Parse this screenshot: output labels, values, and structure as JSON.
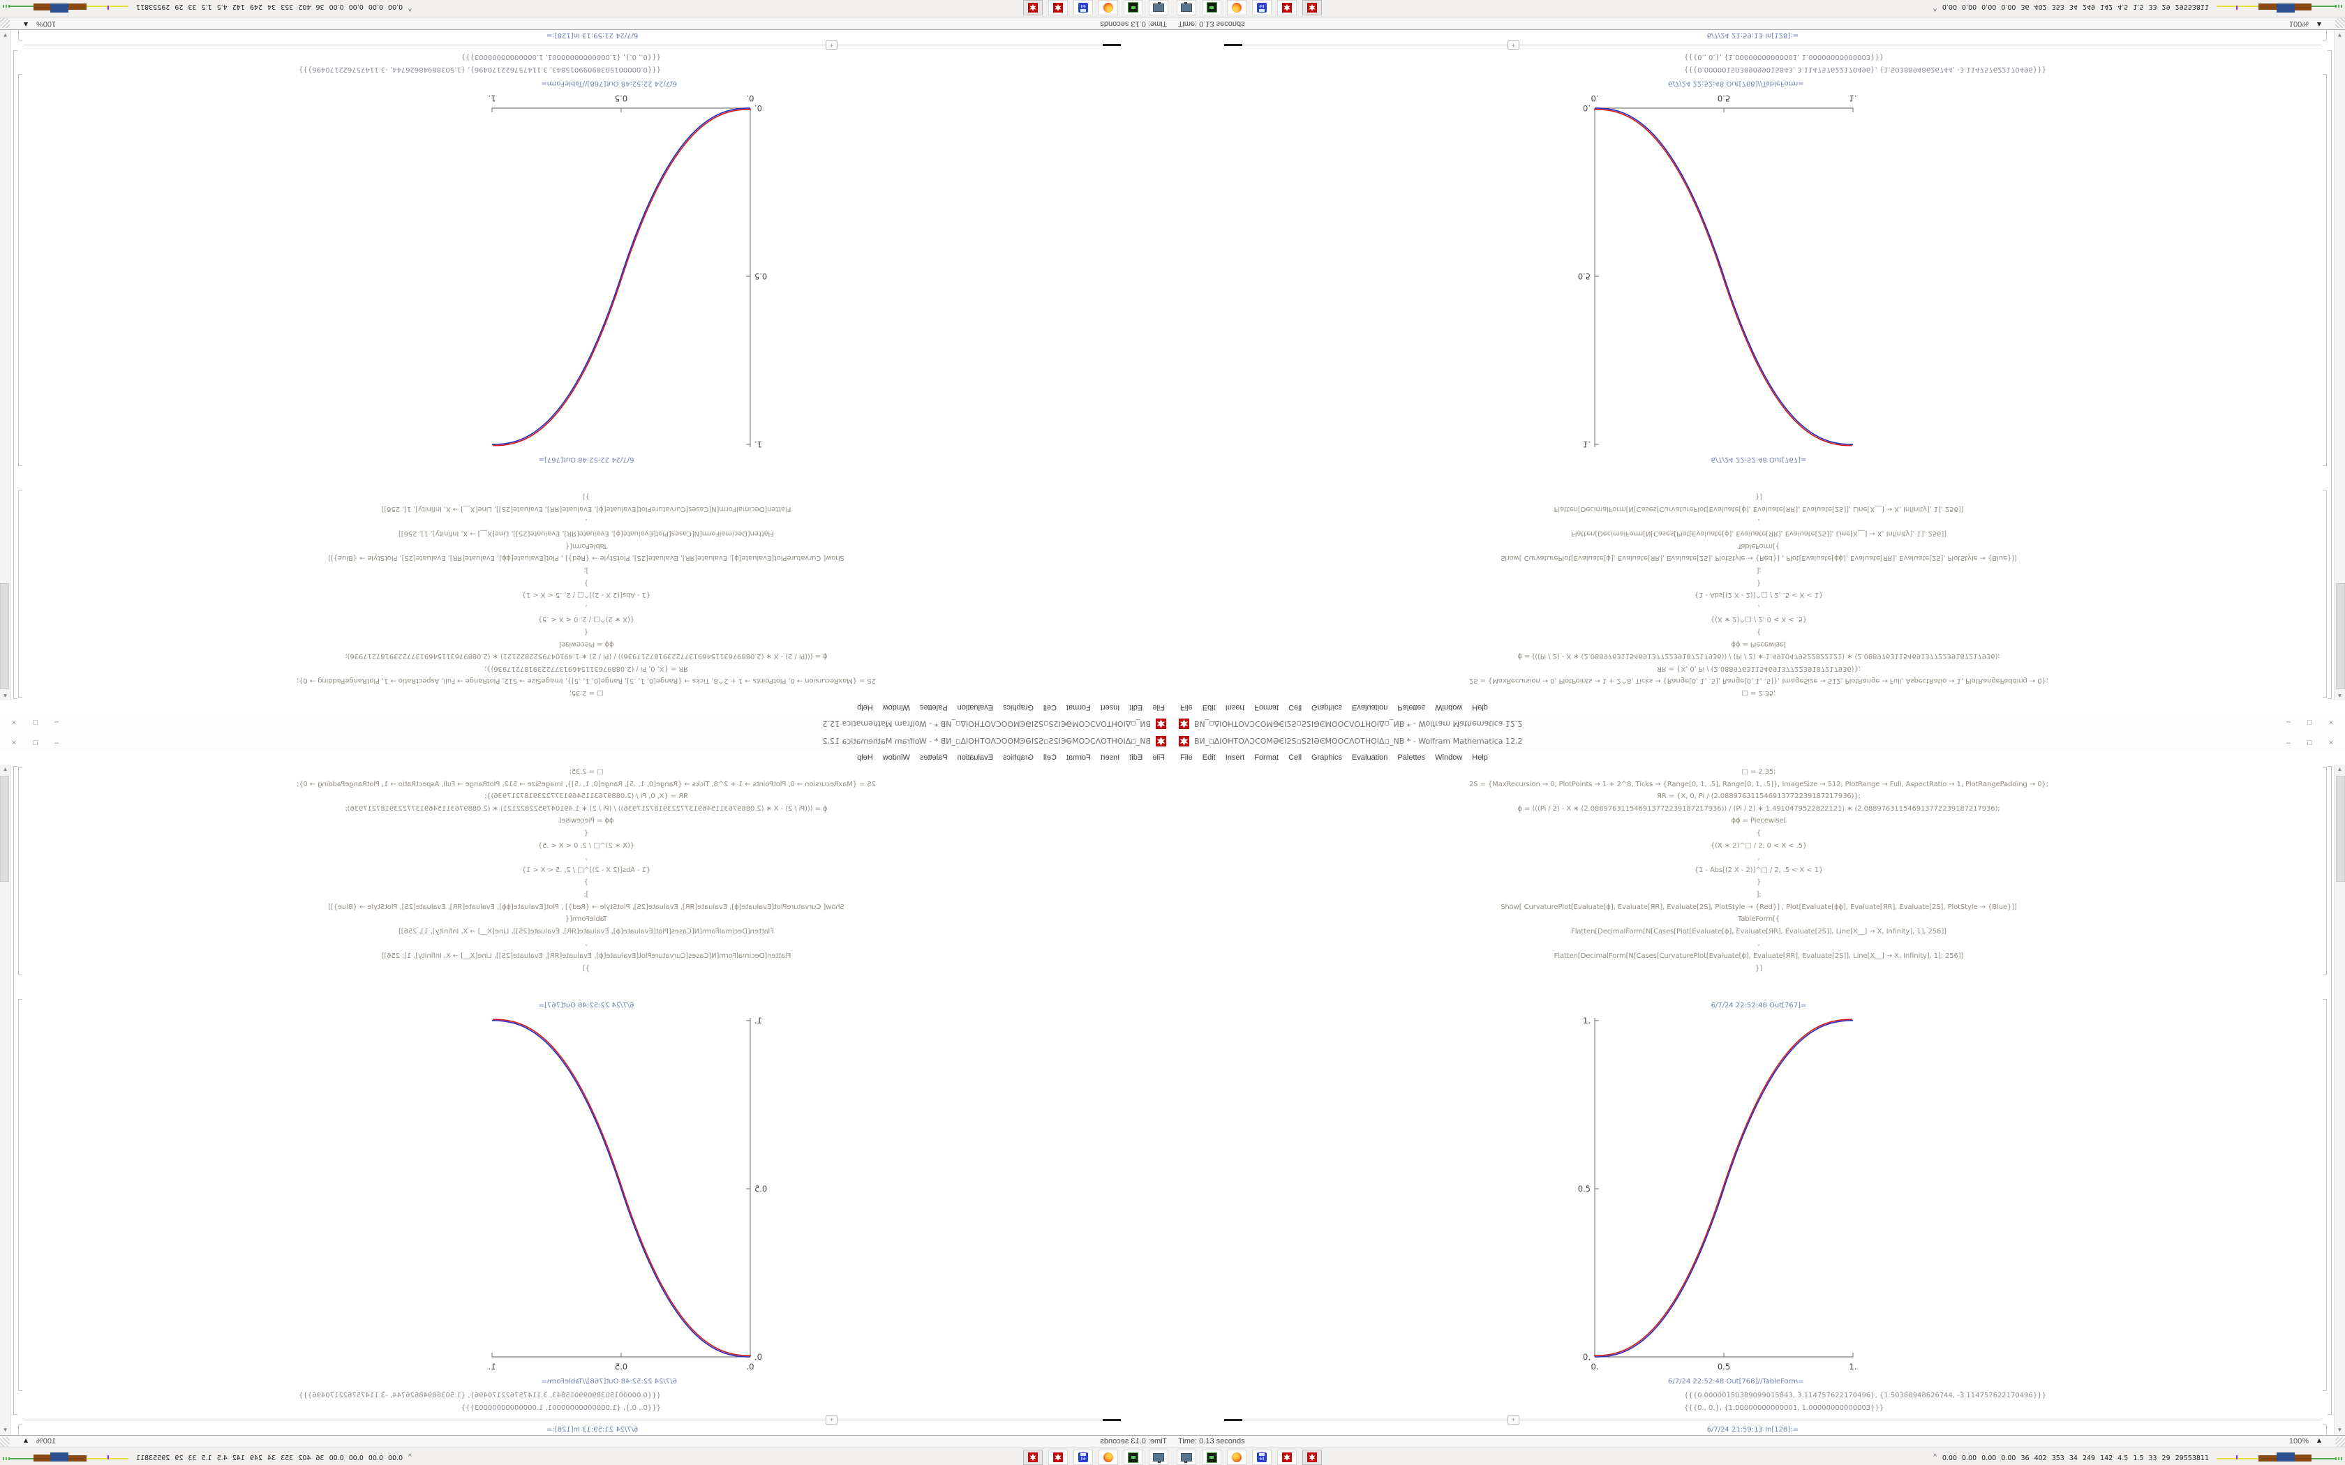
{
  "window": {
    "title": "ВИ_▫ΔIOHTOΛƆCOMƏЄI2S▫S2IƏЄMOOCΛOTHOIΔ▫_NB * - Wolfram Mathematica 12.2",
    "menu": [
      "File",
      "Edit",
      "Insert",
      "Format",
      "Cell",
      "Graphics",
      "Evaluation",
      "Palettes",
      "Window",
      "Help"
    ],
    "controls": {
      "minimize": "–",
      "maximize": "□",
      "close": "×"
    },
    "cells": {
      "code_lines": [
        "□ = 2.35;",
        "2S = {MaxRecursion → 0, PlotPoints → 1 + 2^8, Ticks → {Range[0, 1, .5], Range[0, 1, .5]}, ImageSize → 512, PlotRange → Full, AspectRatio → 1, PlotRangePadding → 0};",
        "ЯR = {X, 0, Pi / (2.088976311546913772239187217936)};",
        "ɸ = (((Pi / 2) - X ∗ (2.088976311546913772239187217936)) / (Pi / 2) ∗ 1.4910479522822121) ∗ (2.088976311546913772239187217936);",
        "ɸɸ = Piecewise[",
        "{",
        "{(X ∗ 2)^□ / 2, 0 < X < .5}",
        ",",
        "{1 - Abs[(2 X - 2)]^□ / 2, .5 < X < 1}",
        "}",
        "];",
        "Show[  CurvaturePlot[Evaluate[ɸ], Evaluate[ЯR], Evaluate[2S], PlotStyle → {Red}]  ,  Plot[Evaluate[ɸɸ], Evaluate[ЯR], Evaluate[2S], PlotStyle → {Blue}]]",
        "TableForm[{",
        "Flatten[DecimalForm[N[Cases[Plot[Evaluate[ɸ], Evaluate[ЯR], Evaluate[2S]], Line[X__] → X, Infinity], 1], 256]]",
        ",",
        "Flatten[DecimalForm[N[Cases[CurvaturePlot[Evaluate[ɸ], Evaluate[ЯR], Evaluate[2S]], Line[X__] → X, Infinity], 1], 256]]",
        "}]"
      ],
      "out1_label": "6/7/24 22:52:48 Out[767]=",
      "out2_label": "6/7/24 22:52:48 Out[768]//TableForm=",
      "table_rows": [
        "{{{0.00000150389099015843, 3.114757622170496}, {1.50388948626744, -3.114757622170496}}}",
        "{{{0., 0.}, {1.00000000000001, 1.00000000000003}}}"
      ],
      "in_label": "6/7/24 21:59:13 In[128]:=",
      "insert_plus": "+"
    },
    "status": {
      "left": "Time: 0.13 seconds",
      "zoom": "100%",
      "zoom_caret": "▲"
    }
  },
  "taskbar": {
    "apps": [
      {
        "name": "system-monitor-app",
        "icon": "monitor",
        "active": false
      },
      {
        "name": "hardware-utility-app",
        "icon": "green",
        "active": false
      },
      {
        "name": "firefox-browser",
        "icon": "ff",
        "active": false
      },
      {
        "name": "disk-64-app",
        "icon": "floppy",
        "label": "64",
        "active": false
      },
      {
        "name": "mathematica-instance-1",
        "icon": "spikey",
        "active": false
      },
      {
        "name": "mathematica-instance-2",
        "icon": "spikey",
        "active": true
      }
    ],
    "tray": {
      "expand": "^",
      "values": [
        "0.00",
        "0.00",
        "0.00",
        "0.00",
        "36",
        "402",
        "353",
        "34",
        "249",
        "142",
        "4.5",
        "1.5",
        "33",
        "29",
        "29553811"
      ],
      "sparklines": [
        {
          "kind": "line",
          "color": "#e3e23f",
          "w": 28
        },
        {
          "kind": "tick",
          "color": "#8b2fc9",
          "w": 2
        },
        {
          "kind": "line",
          "color": "#e3e23f",
          "w": 30
        },
        {
          "kind": "block",
          "color": "#8a4a16",
          "w": 26,
          "h": 9
        },
        {
          "kind": "block",
          "color": "#2e4f8f",
          "w": 26,
          "h": 13
        },
        {
          "kind": "block",
          "color": "#8a4a16",
          "w": 24,
          "h": 10
        },
        {
          "kind": "line",
          "color": "#4bb54b",
          "w": 34
        },
        {
          "kind": "ticks",
          "color": "#4bb54b",
          "w": 12
        }
      ]
    }
  },
  "layout_note": "Screenshot is a 2x2 kaleidoscope: bottom-right quadrant is the original 1680x1050 screen; bottom-left is its horizontal mirror, top-right its vertical mirror, top-left its 180-degree rotation.",
  "chart_data": {
    "type": "line",
    "title": "Out[767]= Show[CurvaturePlot (Red), Plot (Blue)]",
    "xlabel": "",
    "ylabel": "",
    "xlim": [
      0,
      1
    ],
    "ylim": [
      0,
      1
    ],
    "grid": false,
    "legend": false,
    "x_ticks": [
      0,
      0.5,
      1
    ],
    "y_ticks": [
      0,
      0.5,
      1
    ],
    "x_tick_labels": [
      "0.",
      "0.5",
      "1."
    ],
    "y_tick_labels": [
      "0.",
      "0.5",
      "1."
    ],
    "exponent": 2.35,
    "piecewise": "y = (2x)^2.35 / 2 for 0 < x < 0.5 ; y = 1 - |2x - 2|^2.35 / 2 for 0.5 < x < 1",
    "series": [
      {
        "name": "CurvaturePlot[ɸ]",
        "color": "#cf1f1f",
        "x": [
          0,
          0.1,
          0.2,
          0.3,
          0.4,
          0.5,
          0.6,
          0.7,
          0.8,
          0.9,
          1.0
        ],
        "y": [
          0,
          0.0114,
          0.0581,
          0.1506,
          0.296,
          0.5,
          0.704,
          0.8494,
          0.9419,
          0.9886,
          1.0
        ]
      },
      {
        "name": "Plot[ɸɸ]",
        "color": "#2f2fbf",
        "x": [
          0,
          0.1,
          0.2,
          0.3,
          0.4,
          0.5,
          0.6,
          0.7,
          0.8,
          0.9,
          1.0
        ],
        "y": [
          0,
          0.0114,
          0.0581,
          0.1506,
          0.296,
          0.5,
          0.704,
          0.8494,
          0.9419,
          0.9886,
          1.0
        ]
      }
    ]
  }
}
